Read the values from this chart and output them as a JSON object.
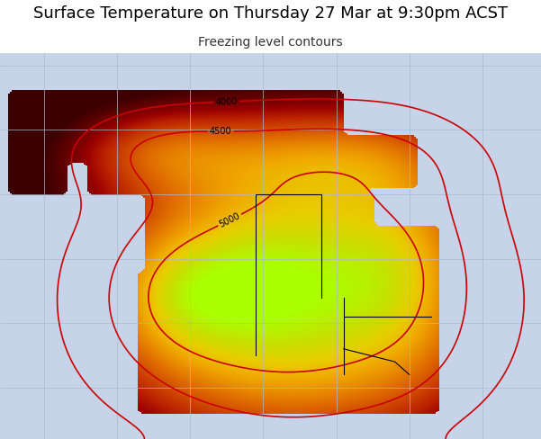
{
  "title": "Surface Temperature on Thursday 27 Mar at 9:30pm ACST",
  "subtitle": "Freezing level contours",
  "title_fontsize": 13,
  "subtitle_fontsize": 10,
  "background_color": "#ffffff",
  "map_bg_color": "#c8d4e8",
  "fig_width": 6.01,
  "fig_height": 4.88,
  "dpi": 100,
  "xlim": [
    94,
    168
  ],
  "ylim": [
    -48,
    12
  ],
  "grid_color": "#aabbcc",
  "grid_lw": 0.5,
  "contour_color": "#cc0000",
  "contour_lw": 1.2,
  "border_color": "#000000",
  "border_lw": 0.8,
  "contour_levels": [
    4000,
    4500,
    5000
  ],
  "temp_colors": [
    "#ffff00",
    "#ffe000",
    "#ffc000",
    "#ff9900",
    "#ff6600",
    "#e84800",
    "#cc3300",
    "#aa1100",
    "#880000",
    "#660000"
  ]
}
